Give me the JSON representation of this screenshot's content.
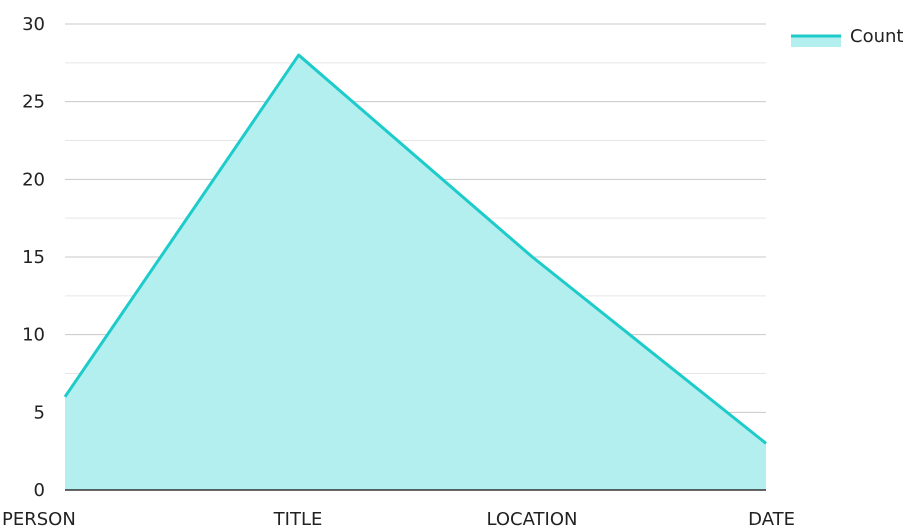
{
  "chart_data": {
    "type": "area",
    "categories": [
      "PERSON",
      "TITLE",
      "LOCATION",
      "DATE"
    ],
    "series": [
      {
        "name": "Count",
        "values": [
          6,
          28,
          15,
          3
        ]
      }
    ],
    "ylim": [
      0,
      30
    ],
    "yticks": [
      0,
      5,
      10,
      15,
      20,
      25,
      30
    ],
    "grid": true,
    "legend": "top-right"
  },
  "colors": {
    "line": "#1ecbcb",
    "fill": "#b3efee",
    "major_grid": "#c8c8c8",
    "minor_grid": "#e6e6e6",
    "axis": "#333333"
  }
}
